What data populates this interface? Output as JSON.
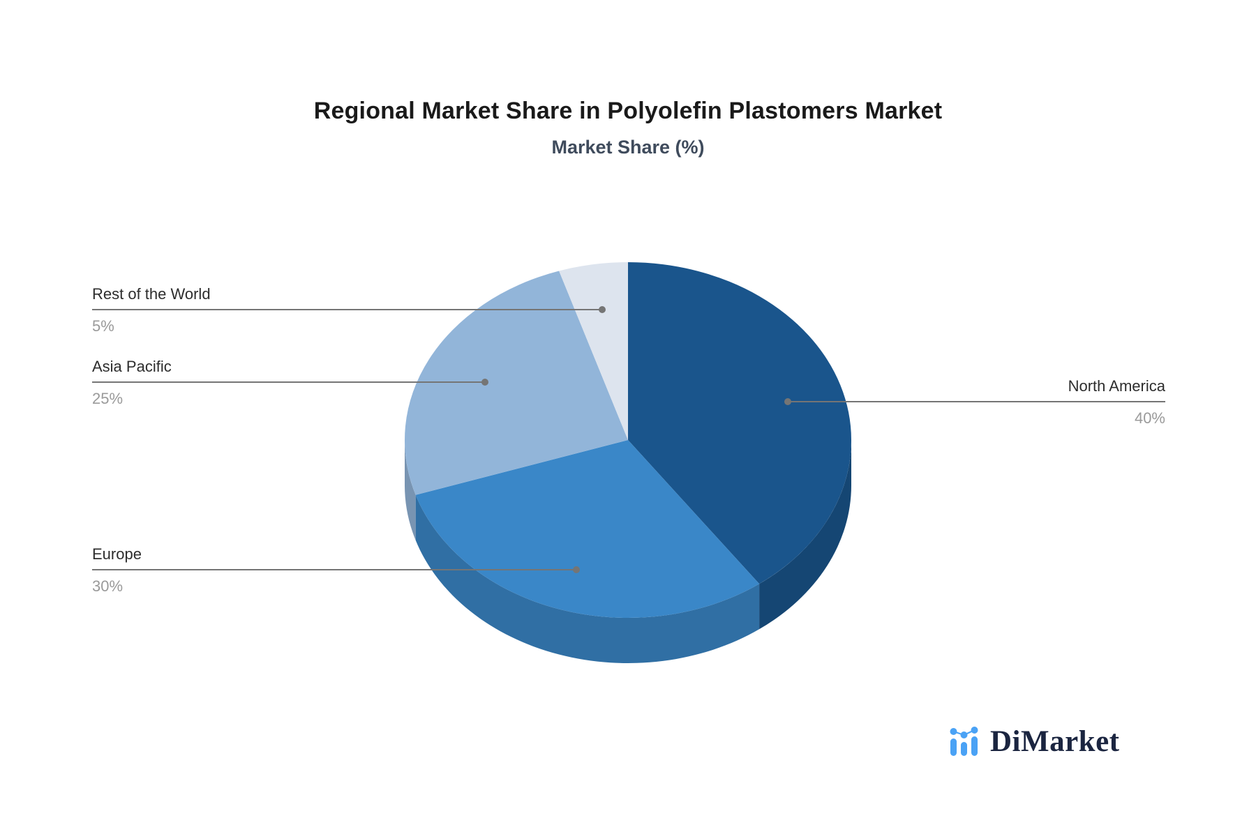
{
  "title": "Regional Market Share in Polyolefin Plastomers Market",
  "subtitle": "Market Share (%)",
  "chart_data": {
    "type": "pie",
    "title": "Regional Market Share in Polyolefin Plastomers Market",
    "subtitle": "Market Share (%)",
    "unit": "%",
    "style": "3d-pie",
    "start_angle_deg": 0,
    "direction": "clockwise",
    "legend_position": "connector-labels",
    "slices": [
      {
        "label": "North America",
        "value": 40,
        "display": "40%",
        "color": "#1a558c"
      },
      {
        "label": "Europe",
        "value": 30,
        "display": "30%",
        "color": "#3a87c8"
      },
      {
        "label": "Asia Pacific",
        "value": 25,
        "display": "25%",
        "color": "#92b5d9"
      },
      {
        "label": "Rest of the World",
        "value": 5,
        "display": "5%",
        "color": "#dde4ee"
      }
    ]
  },
  "logo": {
    "text": "DiMarket",
    "icon": "analytics-bars-icon",
    "accent_color": "#4aa2f5",
    "text_color": "#1b2540"
  },
  "colors": {
    "background": "#ffffff",
    "title": "#1a1a1a",
    "subtitle": "#3f4b5c",
    "label_text": "#2d2d2d",
    "value_text": "#9a9a9a",
    "connector": "#757575"
  }
}
